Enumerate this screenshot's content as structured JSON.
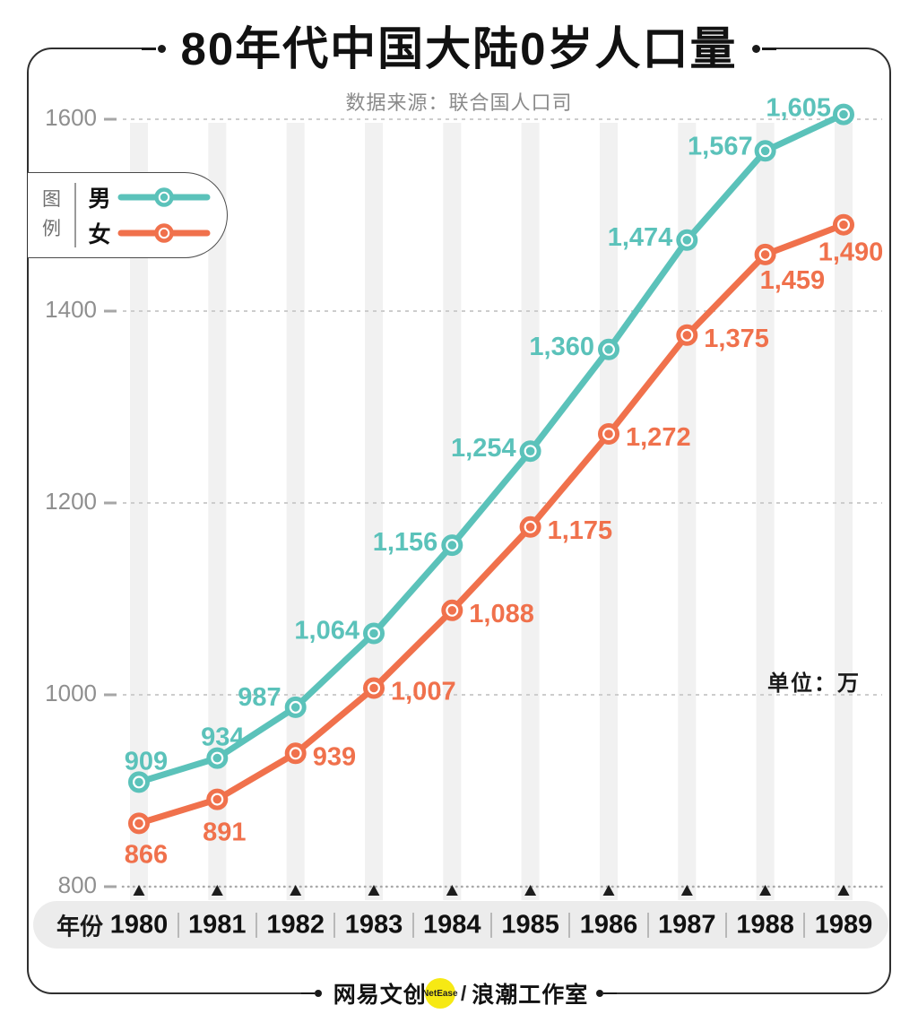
{
  "title": "80年代中国大陆0岁人口量",
  "subtitle": "数据来源：联合国人口司",
  "unit_note": "单位：万",
  "legend": {
    "title": "图例"
  },
  "x_axis": {
    "label": "年份"
  },
  "footer": {
    "brand": "网易文创",
    "badge": "NetEase",
    "separator": "/",
    "studio": "浪潮工作室"
  },
  "colors": {
    "male": "#5bc2ba",
    "female": "#f0714c",
    "grid": "#cdcdcd",
    "grid_bottom": "#a9a9a9",
    "tick_stub": "#a6a6a6",
    "column_band": "#f1f1f1",
    "axis_band_bg": "#ececec",
    "tick_text": "#8f8f8f",
    "triangle": "#1c1c1c",
    "frame_border": "#2f2f2f",
    "badge_yellow": "#f6e914"
  },
  "chart_data": {
    "type": "line",
    "title": "80年代中国大陆0岁人口量",
    "source": "数据来源：联合国人口司",
    "unit": "万",
    "xlabel": "年份",
    "x": [
      1980,
      1981,
      1982,
      1983,
      1984,
      1985,
      1986,
      1987,
      1988,
      1989
    ],
    "ylim": [
      800,
      1600
    ],
    "yticks": [
      800,
      1000,
      1200,
      1400,
      1600
    ],
    "grid": true,
    "legend_position": "upper-left",
    "series": [
      {
        "name": "男",
        "color": "#5bc2ba",
        "values": [
          909,
          934,
          987,
          1064,
          1156,
          1254,
          1360,
          1474,
          1567,
          1605
        ]
      },
      {
        "name": "女",
        "color": "#f0714c",
        "values": [
          866,
          891,
          939,
          1007,
          1088,
          1175,
          1272,
          1375,
          1459,
          1490
        ]
      }
    ]
  }
}
